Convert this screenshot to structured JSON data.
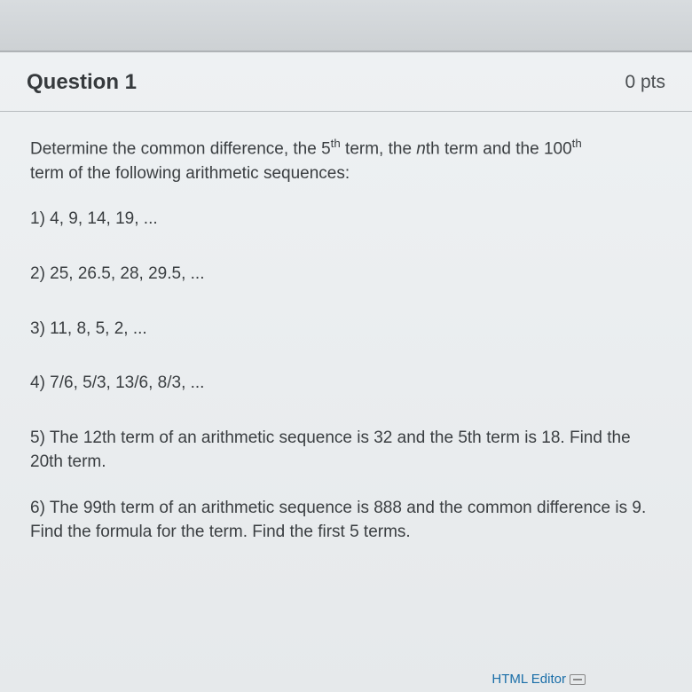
{
  "header": {
    "title": "Question 1",
    "points": "0 pts"
  },
  "intro": {
    "part1": "Determine the common difference, the 5",
    "sup1": "th",
    "part2": " term, the ",
    "italic": "n",
    "part3": "th term and the 100",
    "sup2": "th",
    "part4": " term of the following arithmetic sequences:"
  },
  "items": {
    "q1": "1) 4, 9, 14, 19, ...",
    "q2": "2) 25, 26.5, 28, 29.5, ...",
    "q3": "3) 11, 8, 5, 2, ...",
    "q4": "4) 7/6, 5/3, 13/6, 8/3, ...",
    "q5": "5)  The 12th term of an arithmetic sequence is 32 and the 5th term is 18. Find the 20th term.",
    "q6": "6) The 99th term of an arithmetic sequence is 888 and the common difference is 9. Find the formula for the term. Find the first 5 terms."
  },
  "footer": {
    "link": "HTML Editor"
  },
  "colors": {
    "page_bg": "#c5c9cc",
    "card_bg": "#eef1f3",
    "text": "#3a3e41",
    "title": "#363a3d",
    "link": "#1a6ea8",
    "divider": "#b8bcbf"
  },
  "typography": {
    "title_fontsize": 24,
    "body_fontsize": 19,
    "points_fontsize": 21,
    "link_fontsize": 15
  }
}
